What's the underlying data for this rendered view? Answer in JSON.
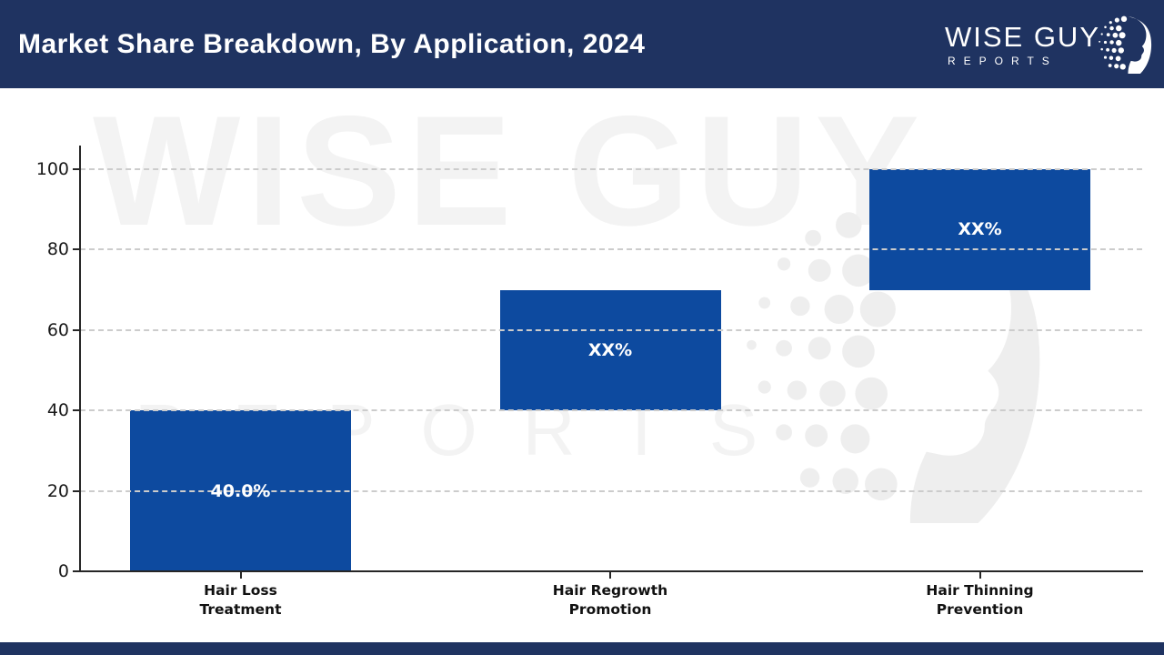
{
  "header": {
    "title": "Market Share Breakdown, By Application, 2024",
    "bg_color": "#1f3361",
    "logo": {
      "wordmark": "WISE GUY",
      "subtext": "REPORTS"
    }
  },
  "watermark": {
    "wordmark": "WISE GUY",
    "subtext": "REPORTS"
  },
  "chart_data": {
    "type": "bar",
    "subtype": "floating-segment-waterfall",
    "title": "Market Share Breakdown, By Application, 2024",
    "categories": [
      "Hair Loss\nTreatment",
      "Hair Regrowth\nPromotion",
      "Hair Thinning\nPrevention"
    ],
    "segments": [
      {
        "category": "Hair Loss Treatment",
        "from": 0,
        "to": 40,
        "label": "40.0%"
      },
      {
        "category": "Hair Regrowth Promotion",
        "from": 40,
        "to": 70,
        "label": "XX%"
      },
      {
        "category": "Hair Thinning Prevention",
        "from": 70,
        "to": 100,
        "label": "XX%"
      }
    ],
    "y_ticks": [
      0,
      20,
      40,
      60,
      80,
      100
    ],
    "ylim": [
      0,
      100
    ],
    "xlabel": "",
    "ylabel": "",
    "grid": "horizontal-dashed",
    "grid_above_bars": true,
    "legend": "none",
    "bar_color": "#0d4a9f",
    "bar_label_color": "#ffffff",
    "axis_color": "#262626",
    "grid_color": "#cccccc",
    "tick_label_color": "#1a1a1a"
  },
  "footer": {
    "bg_color": "#1f3361"
  }
}
